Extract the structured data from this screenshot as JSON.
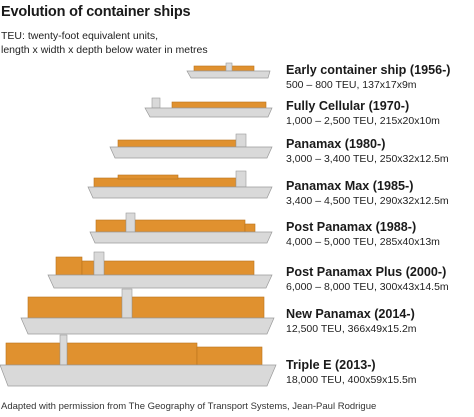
{
  "title": "Evolution of container ships",
  "note": {
    "line1": "TEU: twenty-foot equivalent units,",
    "line2": "length x width x depth below water in metres"
  },
  "colors": {
    "hull": "#d9d9d9",
    "hull_stroke": "#9a9a9a",
    "cargo": "#e0912f",
    "cargo_stroke": "#b9731d"
  },
  "ships": [
    {
      "name": "Early container ship (1956-)",
      "spec": "500 – 800 TEU, 137x17x9m"
    },
    {
      "name": "Fully Cellular (1970-)",
      "spec": "1,000 – 2,500 TEU, 215x20x10m"
    },
    {
      "name": "Panamax (1980-)",
      "spec": "3,000 – 3,400 TEU, 250x32x12.5m"
    },
    {
      "name": "Panamax Max (1985-)",
      "spec": "3,400 – 4,500 TEU, 290x32x12.5m"
    },
    {
      "name": "Post Panamax (1988-)",
      "spec": "4,000 – 5,000 TEU, 285x40x13m"
    },
    {
      "name": "Post Panamax Plus (2000-)",
      "spec": "6,000 – 8,000 TEU, 300x43x14.5m"
    },
    {
      "name": "New Panamax (2014-)",
      "spec": "12,500 TEU, 366x49x15.2m"
    },
    {
      "name": "Triple E (2013-)",
      "spec": "18,000 TEU, 400x59x15.5m"
    }
  ],
  "footer": "Adapted with permission from The Geography of Transport Systems, Jean-Paul Rodrigue"
}
